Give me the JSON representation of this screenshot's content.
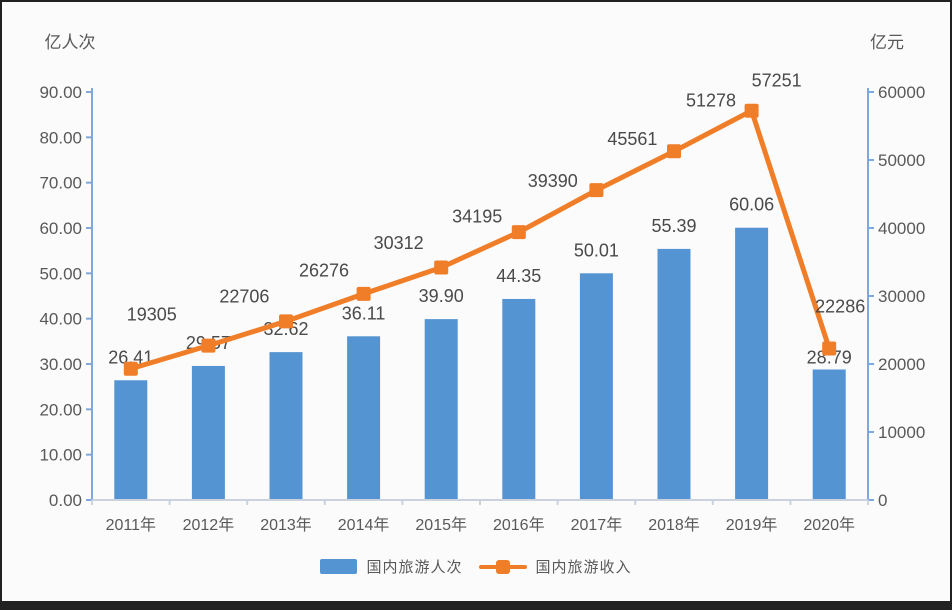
{
  "chart_data": {
    "type": "bar",
    "combo": "bar+line dual axis",
    "title": "",
    "categories": [
      "2011年",
      "2012年",
      "2013年",
      "2014年",
      "2015年",
      "2016年",
      "2017年",
      "2018年",
      "2019年",
      "2020年"
    ],
    "series": [
      {
        "name": "国内旅游人次",
        "type": "bar",
        "y_axis": "left",
        "values": [
          26.41,
          29.57,
          32.62,
          36.11,
          39.9,
          44.35,
          50.01,
          55.39,
          60.06,
          28.79
        ],
        "value_labels": [
          "26.41",
          "29.57",
          "32.62",
          "36.11",
          "39.90",
          "44.35",
          "50.01",
          "55.39",
          "60.06",
          "28.79"
        ]
      },
      {
        "name": "国内旅游收入",
        "type": "line",
        "y_axis": "right",
        "values": [
          19305,
          22706,
          26276,
          30312,
          34195,
          39390,
          45561,
          51278,
          57251,
          22286
        ],
        "value_labels": [
          "19305",
          "22706",
          "26276",
          "30312",
          "34195",
          "39390",
          "45561",
          "51278",
          "57251",
          "22286"
        ]
      }
    ],
    "left_axis": {
      "title": "亿人次",
      "min": 0,
      "max": 90,
      "tick_step": 10,
      "tick_labels": [
        "0.00",
        "10.00",
        "20.00",
        "30.00",
        "40.00",
        "50.00",
        "60.00",
        "70.00",
        "80.00",
        "90.00"
      ]
    },
    "right_axis": {
      "title": "亿元",
      "min": 0,
      "max": 60000,
      "tick_step": 10000,
      "tick_labels": [
        "0",
        "10000",
        "20000",
        "30000",
        "40000",
        "50000",
        "60000"
      ]
    },
    "xlabel": "",
    "grid": false,
    "data_labels": true,
    "legend_position": "bottom",
    "legend": [
      "国内旅游人次",
      "国内旅游收入"
    ]
  },
  "style": {
    "bar_color": "#5594d2",
    "line_color": "#f07d28",
    "y_axis_line_color": "#7fa8dc",
    "x_axis_line_color": "#c9d2dd",
    "tick_label_color": "#595959",
    "data_label_color": "#4a4a4a",
    "axis_title_color": "#595959",
    "chart_background": "#fbfbfb",
    "frame_border_color": "#212121"
  }
}
